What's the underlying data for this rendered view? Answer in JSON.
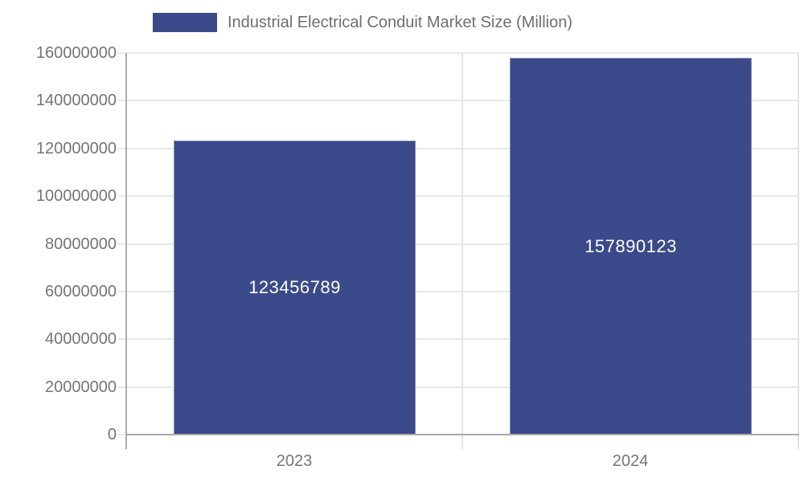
{
  "legend": {
    "label": "Industrial Electrical Conduit Market Size (Million)"
  },
  "chart_data": {
    "type": "bar",
    "title": "Industrial Electrical Conduit Market Size (Million)",
    "categories": [
      "2023",
      "2024"
    ],
    "values": [
      123456789,
      157890123
    ],
    "value_labels": [
      "123456789",
      "157890123"
    ],
    "xlabel": "",
    "ylabel": "",
    "ylim": [
      0,
      160000000
    ],
    "ytick_step": 20000000,
    "ytick_labels": [
      "0",
      "20000000",
      "40000000",
      "60000000",
      "80000000",
      "100000000",
      "120000000",
      "140000000",
      "160000000"
    ],
    "grid": true,
    "legend_position": "top-center",
    "data_label_position": "inside-center",
    "colors": {
      "bar": "#3A4A8B",
      "data_label": "#FFFFFF",
      "axis_text": "#757575",
      "legend_text": "#6F6F6F",
      "gridline": "#E9E9E9",
      "boundary_line": "#E3E3E3",
      "axis_line": "#ABABAB",
      "background": "#FFFFFF"
    }
  }
}
